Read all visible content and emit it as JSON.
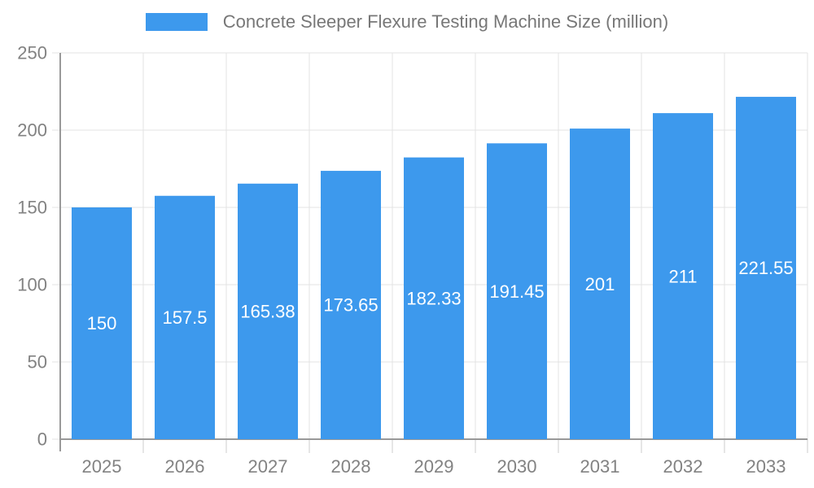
{
  "chart_data": {
    "type": "bar",
    "title": "Concrete Sleeper Flexure Testing Machine Size (million)",
    "categories": [
      "2025",
      "2026",
      "2027",
      "2028",
      "2029",
      "2030",
      "2031",
      "2032",
      "2033"
    ],
    "values": [
      150,
      157.5,
      165.38,
      173.65,
      182.33,
      191.45,
      201,
      211,
      221.55
    ],
    "xlabel": "",
    "ylabel": "",
    "ylim": [
      0,
      250
    ],
    "yticks": [
      0,
      50,
      100,
      150,
      200,
      250
    ],
    "grid": true,
    "legend_position": "top",
    "bar_label_color": "#ffffff",
    "colors": {
      "bar": "#3d99ed",
      "grid": "#e3e3e3",
      "axis": "#999999",
      "outer_tick": "#cccccc",
      "tick_label": "#828282",
      "title": "#777777"
    }
  }
}
